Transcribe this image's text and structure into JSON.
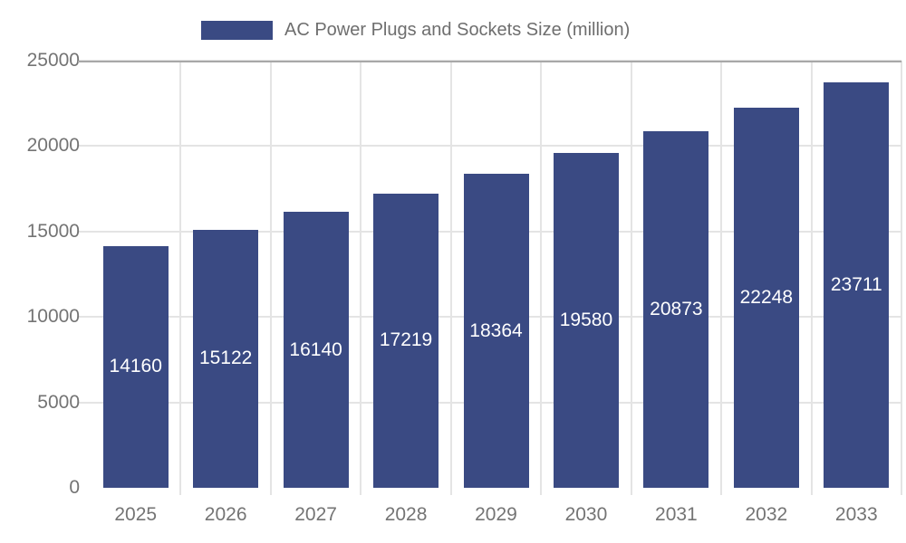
{
  "chart_data": {
    "type": "bar",
    "title": "AC Power Plugs and Sockets Size (million)",
    "series_name": "AC Power Plugs and Sockets Size (million)",
    "categories": [
      "2025",
      "2026",
      "2027",
      "2028",
      "2029",
      "2030",
      "2031",
      "2032",
      "2033"
    ],
    "values": [
      14160,
      15122,
      16140,
      17219,
      18364,
      19580,
      20873,
      22248,
      23711
    ],
    "xlabel": "",
    "ylabel": "",
    "ylim": [
      0,
      25000
    ],
    "yticks": [
      0,
      5000,
      10000,
      15000,
      20000,
      25000
    ],
    "grid": true,
    "legend_position": "top-center",
    "value_labels": "centered-inside-bars",
    "colors": {
      "bar": "#3A4A83",
      "bar_label_text": "#ffffff",
      "gridline": "#e4e4e4",
      "axis_line": "#a8a8a8",
      "tick_text": "#747474",
      "legend_text": "#6e6e6e",
      "background": "#ffffff"
    }
  }
}
